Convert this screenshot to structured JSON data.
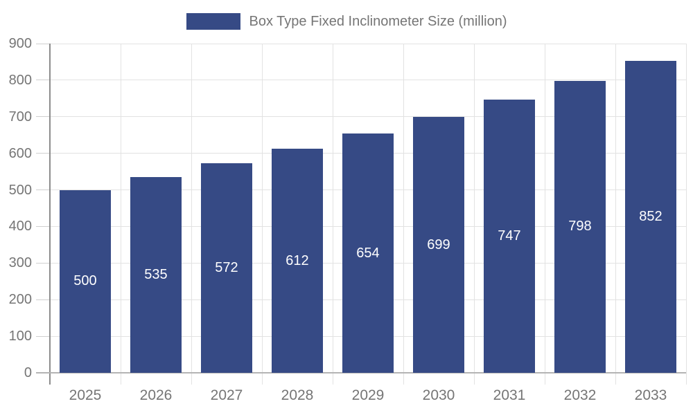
{
  "legend": {
    "label": "Box Type Fixed Inclinometer Size (million)"
  },
  "chart_data": {
    "type": "bar",
    "title": "",
    "legend": "Box Type Fixed Inclinometer Size (million)",
    "categories": [
      "2025",
      "2026",
      "2027",
      "2028",
      "2029",
      "2030",
      "2031",
      "2032",
      "2033"
    ],
    "values": [
      500,
      535,
      572,
      612,
      654,
      699,
      747,
      798,
      852
    ],
    "xlabel": "",
    "ylabel": "",
    "ylim": [
      0,
      900
    ],
    "y_ticks": [
      0,
      100,
      200,
      300,
      400,
      500,
      600,
      700,
      800,
      900
    ],
    "grid": true,
    "legend_position": "top-center",
    "value_labels": "inside-center",
    "colors": {
      "bar": "#364A85",
      "gridline": "#e2e2e2",
      "y_axis": "#8c8c8c",
      "x_axis": "#b3b3b3",
      "tick_text": "#757575",
      "value_label_text": "#ffffff"
    }
  }
}
